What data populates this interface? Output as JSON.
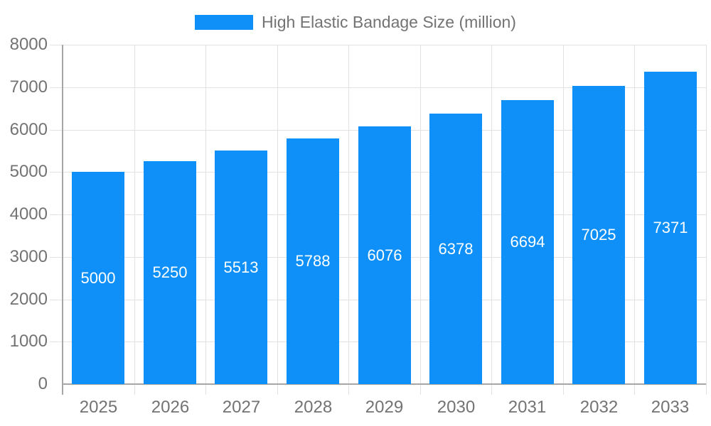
{
  "chart_data": {
    "type": "bar",
    "title": "High Elastic Bandage Size (million)",
    "legend": [
      "High Elastic Bandage Size (million)"
    ],
    "legend_position": "top-center",
    "categories": [
      "2025",
      "2026",
      "2027",
      "2028",
      "2029",
      "2030",
      "2031",
      "2032",
      "2033"
    ],
    "values": [
      5000,
      5250,
      5513,
      5788,
      6076,
      6378,
      6694,
      7025,
      7371
    ],
    "value_labels_shown": true,
    "xlabel": "",
    "ylabel": "",
    "ylim": [
      0,
      8000
    ],
    "ytick_step": 1000,
    "yticks": [
      0,
      1000,
      2000,
      3000,
      4000,
      5000,
      6000,
      7000,
      8000
    ],
    "grid": true,
    "colors": {
      "bar": "#0E90F8",
      "value_label": "#ffffff",
      "axis_text": "#737373",
      "grid_line": "#e2e2e2",
      "axis_line": "#a6a6a6",
      "background": "#ffffff"
    }
  }
}
